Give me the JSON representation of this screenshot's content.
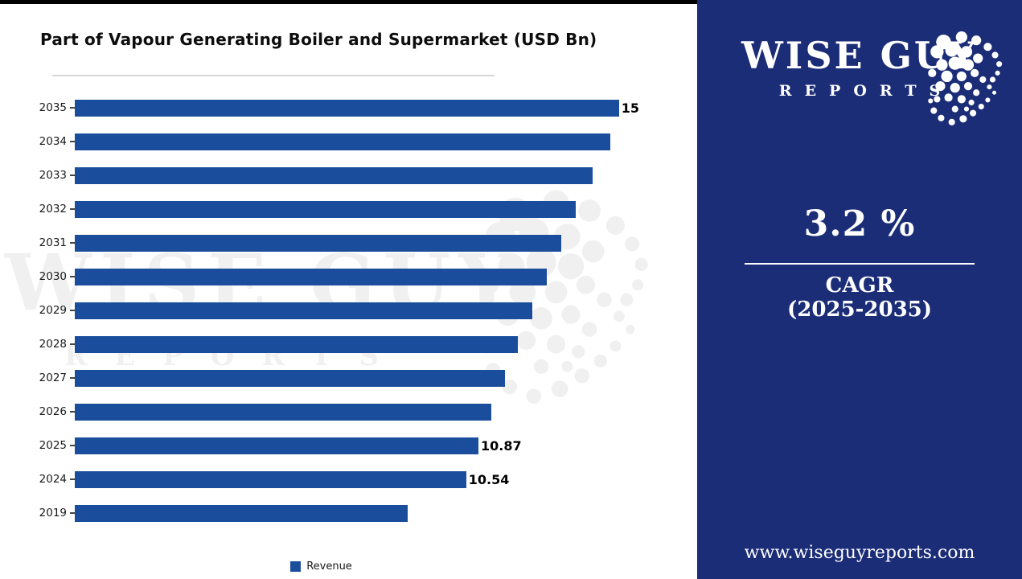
{
  "watermark": {
    "line1": "WISE GUY",
    "line2": "REPORTS"
  },
  "colors": {
    "bar_color": "#1a4e9c",
    "panel_color": "#1c2d78"
  },
  "brand": {
    "logo_line1": "WISE GUY",
    "logo_line2": "REPORTS",
    "cagr_value": "3.2 %",
    "cagr_label": "CAGR",
    "cagr_period": "(2025-2035)",
    "website": "www.wiseguyreports.com"
  },
  "chart_data": {
    "type": "bar",
    "orientation": "horizontal",
    "title": "Part of Vapour Generating Boiler and Supermarket (USD Bn)",
    "series_name": "Revenue",
    "categories": [
      "2035",
      "2034",
      "2033",
      "2032",
      "2031",
      "2030",
      "2029",
      "2028",
      "2027",
      "2026",
      "2025",
      "2024",
      "2019"
    ],
    "values": [
      15,
      14.43,
      13.95,
      13.5,
      13.1,
      12.71,
      12.31,
      11.93,
      11.58,
      11.22,
      10.87,
      10.54,
      8.97
    ],
    "data_labels": [
      "15",
      "",
      "",
      "",
      "",
      "",
      "",
      "",
      "",
      "",
      "10.87",
      "10.54",
      ""
    ],
    "xlim": [
      0,
      15.2
    ],
    "grid": false,
    "legend_position": "bottom",
    "bar_color": "#1a4e9c"
  }
}
